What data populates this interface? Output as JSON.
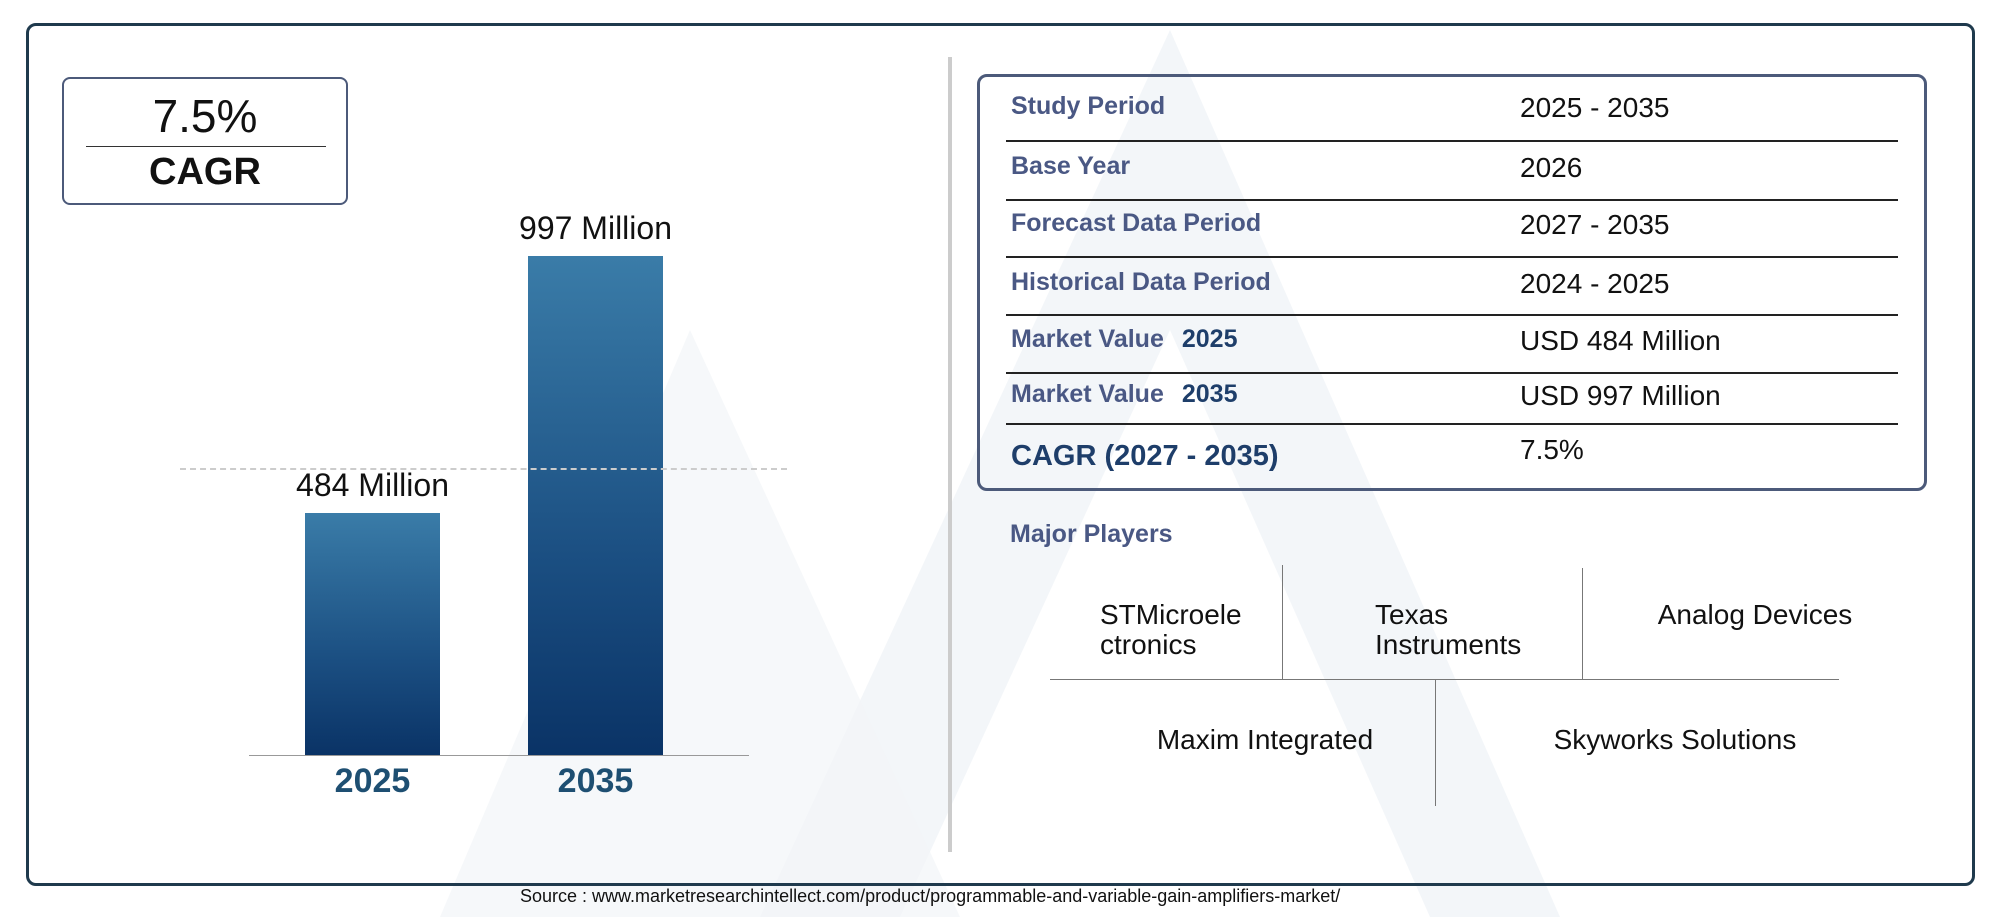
{
  "cagr_box": {
    "value": "7.5%",
    "label": "CAGR"
  },
  "chart_data": {
    "type": "bar",
    "categories": [
      "2025",
      "2035"
    ],
    "values": [
      484,
      997
    ],
    "data_labels": [
      "484 Million",
      "997 Million"
    ],
    "title": "",
    "xlabel": "",
    "ylabel": "",
    "colors": [
      "#3a7ca8",
      "#0a3366"
    ],
    "reference_line": {
      "value": 484,
      "style": "dashed"
    }
  },
  "table": {
    "rows": [
      {
        "label": "Study Period",
        "label_year": "",
        "value": "2025 - 2035"
      },
      {
        "label": "Base Year",
        "label_year": "",
        "value": "2026"
      },
      {
        "label": "Forecast Data Period",
        "label_year": "",
        "value": "2027 - 2035"
      },
      {
        "label": "Historical Data Period",
        "label_year": "",
        "value": "2024 - 2025"
      },
      {
        "label": "Market Value",
        "label_year": "2025",
        "value": "USD 484 Million"
      },
      {
        "label": "Market Value",
        "label_year": "2035",
        "value": "USD 997 Million"
      },
      {
        "label": "CAGR (2027 - 2035)",
        "label_year": "",
        "value": "7.5%"
      }
    ]
  },
  "major_players": {
    "title": "Major Players",
    "players": [
      "STMicroele ctronics",
      "Texas Instruments",
      "Analog Devices",
      "Maxim Integrated",
      "Skyworks Solutions"
    ]
  },
  "source": "Source : www.marketresearchintellect.com/product/programmable-and-variable-gain-amplifiers-market/"
}
